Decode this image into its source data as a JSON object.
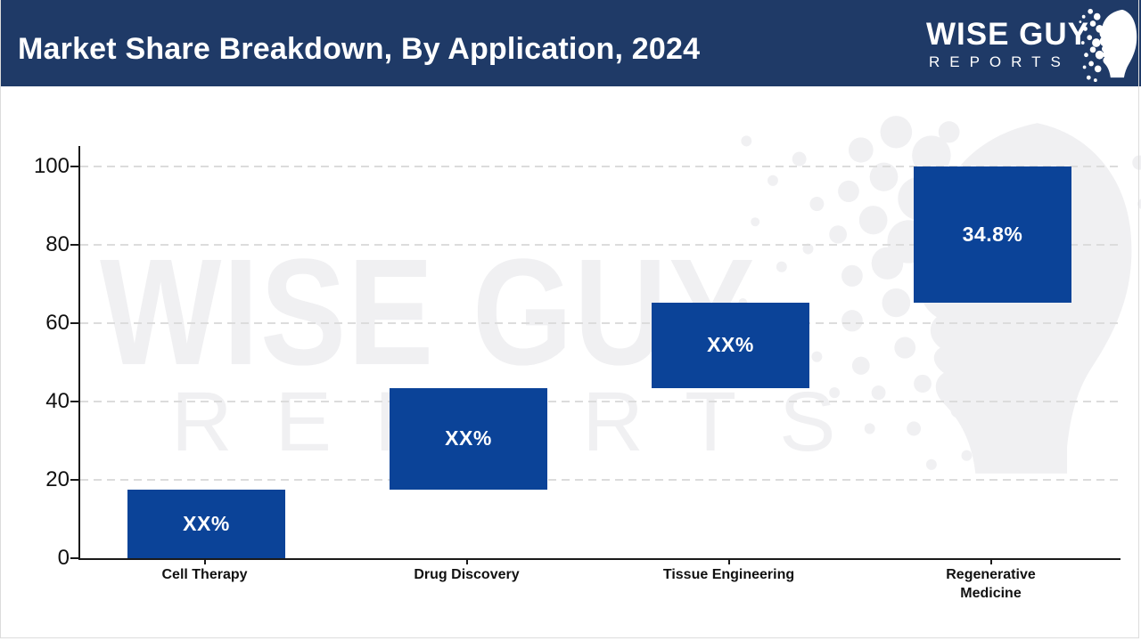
{
  "header": {
    "title": "Market Share Breakdown, By Application, 2024",
    "logo": {
      "brand": "WISE GUY",
      "tagline": "REPORTS"
    }
  },
  "watermark": {
    "brand": "WISE GUY",
    "tagline": "REPORTS"
  },
  "colors": {
    "page_bg": "#ffffff",
    "header_bg": "#1f3a67",
    "bar_fill": "#0b4398",
    "bar_label": "#ffffff",
    "axis": "#1a1a1a",
    "axis_text": "#111111",
    "gridline": "#dcdcdc",
    "watermark": "#f0f0f2"
  },
  "chart_data": {
    "type": "bar",
    "subtype": "waterfall",
    "title": "Market Share Breakdown, By Application, 2024",
    "categories": [
      "Cell Therapy",
      "Drug Discovery",
      "Tissue Engineering",
      "Regenerative Medicine"
    ],
    "bars": [
      {
        "category": "Cell Therapy",
        "start": 0,
        "end": 17.5,
        "value": 17.5,
        "label": "XX%"
      },
      {
        "category": "Drug Discovery",
        "start": 17.5,
        "end": 43.5,
        "value": 26.0,
        "label": "XX%"
      },
      {
        "category": "Tissue Engineering",
        "start": 43.5,
        "end": 65.2,
        "value": 21.7,
        "label": "XX%"
      },
      {
        "category": "Regenerative Medicine",
        "start": 65.2,
        "end": 100,
        "value": 34.8,
        "label": "34.8%"
      }
    ],
    "xlabel": "",
    "ylabel": "",
    "ylim": [
      0,
      100
    ],
    "yticks": [
      0,
      20,
      40,
      60,
      80,
      100
    ],
    "grid": "horizontal-dashed",
    "legend": null
  }
}
